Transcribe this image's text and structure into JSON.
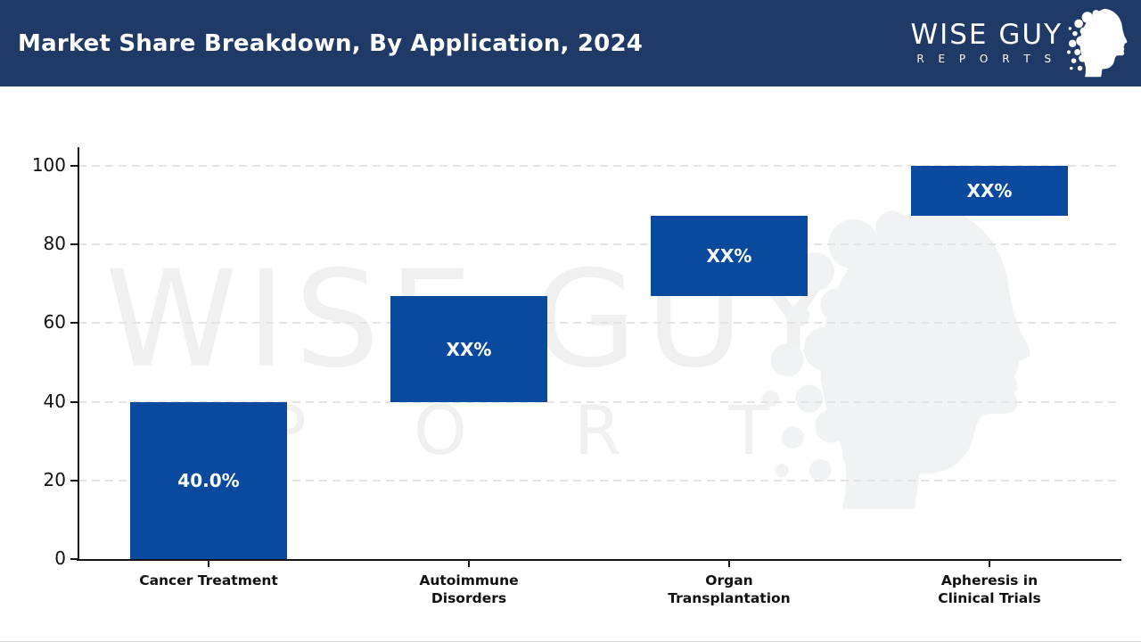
{
  "header": {
    "title": "Market Share Breakdown, By Application, 2024",
    "logo": {
      "brand": "WISE GUY",
      "sub": "R E P O R T S"
    }
  },
  "watermark": {
    "brand": "WISE GUY",
    "sub": "P O R T S"
  },
  "colors": {
    "header_bg": "#1f3a66",
    "bar": "#0a4a9e",
    "bar_label": "#ffffff",
    "grid": "#e4e4e4",
    "axis": "#141414",
    "watermark_text": "#f0f0f0",
    "watermark_face": "#f0f2f4"
  },
  "chart_data": {
    "type": "bar",
    "subtype": "waterfall",
    "title": "Market Share Breakdown, By Application, 2024",
    "categories": [
      "Cancer Treatment",
      "Autoimmune Disorders",
      "Organ Transplantation",
      "Apheresis in Clinical Trials"
    ],
    "x_tick_labels": [
      "Cancer Treatment",
      "Autoimmune\nDisorders",
      "Organ\nTransplantation",
      "Apheresis in\nClinical Trials"
    ],
    "bars": [
      {
        "category": "Cancer Treatment",
        "start": 0,
        "end": 40,
        "label": "40.0%"
      },
      {
        "category": "Autoimmune Disorders",
        "start": 40,
        "end": 66.8,
        "label": "XX%"
      },
      {
        "category": "Organ Transplantation",
        "start": 66.8,
        "end": 87.4,
        "label": "XX%"
      },
      {
        "category": "Apheresis in Clinical Trials",
        "start": 87.4,
        "end": 100,
        "label": "XX%"
      }
    ],
    "xlabel": "",
    "ylabel": "",
    "yticks": [
      0,
      20,
      40,
      60,
      80,
      100
    ],
    "ylim": [
      0,
      105
    ],
    "grid": "horizontal-dashed",
    "legend": null,
    "bar_color": "#0a4a9e",
    "bar_label_color": "#ffffff"
  }
}
